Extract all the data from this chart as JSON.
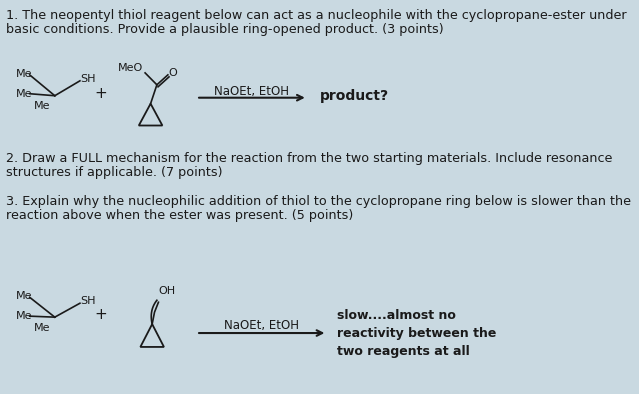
{
  "bg_color": "#c9d9e1",
  "text_color": "#1a1a1a",
  "title1": "1. The neopentyl thiol reagent below can act as a nucleophile with the cyclopropane-ester under",
  "title1b": "basic conditions. Provide a plausible ring-opened product. (3 points)",
  "title2": "2. Draw a FULL mechanism for the reaction from the two starting materials. Include resonance",
  "title2b": "structures if applicable. (7 points)",
  "title3": "3. Explain why the nucleophilic addition of thiol to the cyclopropane ring below is slower than the",
  "title3b": "reaction above when the ester was present. (5 points)",
  "reagent1_label": "NaOEt, EtOH",
  "product1_label": "product?",
  "reagent2_label": "NaOEt, EtOH",
  "product2_label": "slow....almost no\nreactivity between the\ntwo reagents at all",
  "fig_width": 6.39,
  "fig_height": 3.94,
  "dpi": 100
}
